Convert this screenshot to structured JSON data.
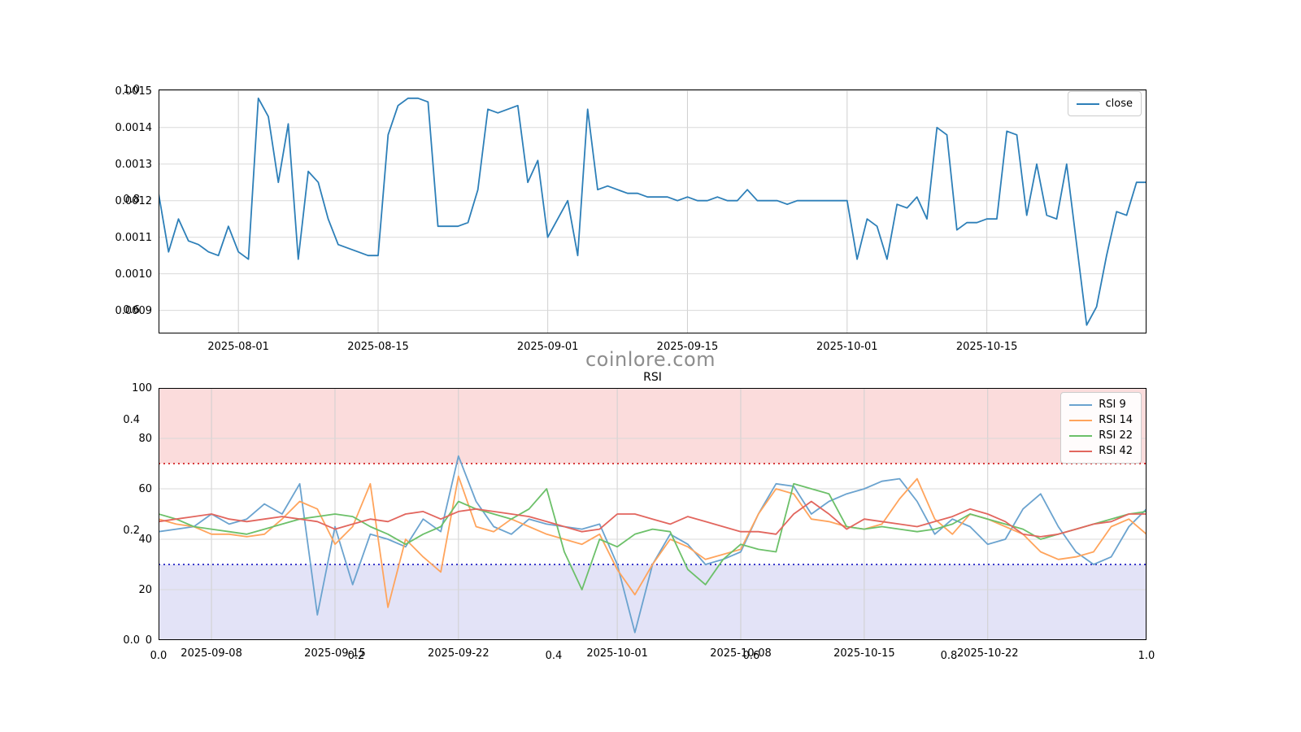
{
  "watermark": "coinlore.com",
  "rsi_title": "RSI",
  "overlay_axis_ticks": {
    "comment_visible_overlap_labels": "figure-fraction axis labels overlapping the data axis labels",
    "x_labels": [
      "0.0",
      "0.2",
      "0.4",
      "0.6",
      "0.8",
      "1.0"
    ],
    "y_labels": [
      "1.0",
      "0.8",
      "0.6",
      "0.4",
      "0.2",
      "0.0"
    ]
  },
  "chart_data": [
    {
      "type": "line",
      "name": "price-close",
      "title": "",
      "legend_position": "upper right",
      "x_range_estimate": [
        "2025-07-24",
        "2025-10-31"
      ],
      "n_points": 100,
      "x_tick_labels": [
        "2025-08-01",
        "2025-08-15",
        "2025-09-01",
        "2025-09-15",
        "2025-10-01",
        "2025-10-15"
      ],
      "x_tick_index": [
        8,
        22,
        39,
        53,
        69,
        83
      ],
      "y_tick_labels": [
        "0.0015",
        "0.0014",
        "0.0013",
        "0.0012",
        "0.0011",
        "0.0010",
        "0.0009"
      ],
      "y_tick_values": [
        0.0015,
        0.0014,
        0.0013,
        0.0012,
        0.0011,
        0.001,
        0.0009
      ],
      "ylim": [
        0.000837,
        0.001504
      ],
      "grid": true,
      "series": [
        {
          "name": "close",
          "color": "#2d7fb8",
          "values": [
            0.00122,
            0.00106,
            0.00115,
            0.00109,
            0.00108,
            0.00106,
            0.00105,
            0.00113,
            0.00106,
            0.00104,
            0.00148,
            0.00143,
            0.00125,
            0.00141,
            0.00104,
            0.00128,
            0.00125,
            0.00115,
            0.00108,
            0.00107,
            0.00106,
            0.00105,
            0.00105,
            0.00138,
            0.00146,
            0.00148,
            0.00148,
            0.00147,
            0.00113,
            0.00113,
            0.00113,
            0.00114,
            0.00123,
            0.00145,
            0.00144,
            0.00145,
            0.00146,
            0.00125,
            0.00131,
            0.0011,
            0.00115,
            0.0012,
            0.00105,
            0.00145,
            0.00123,
            0.00124,
            0.00123,
            0.00122,
            0.00122,
            0.00121,
            0.00121,
            0.00121,
            0.0012,
            0.00121,
            0.0012,
            0.0012,
            0.00121,
            0.0012,
            0.0012,
            0.00123,
            0.0012,
            0.0012,
            0.0012,
            0.00119,
            0.0012,
            0.0012,
            0.0012,
            0.0012,
            0.0012,
            0.0012,
            0.00104,
            0.00115,
            0.00113,
            0.00104,
            0.00119,
            0.00118,
            0.00121,
            0.00115,
            0.0014,
            0.00138,
            0.00112,
            0.00114,
            0.00114,
            0.00115,
            0.00115,
            0.00139,
            0.00138,
            0.00116,
            0.0013,
            0.00116,
            0.00115,
            0.0013,
            0.00108,
            0.00086,
            0.00091,
            0.00105,
            0.00117,
            0.00116,
            0.00125,
            0.00125
          ]
        }
      ]
    },
    {
      "type": "line",
      "name": "rsi",
      "title": "RSI",
      "legend_position": "upper right",
      "x_range_estimate": [
        "2025-09-05",
        "2025-10-31"
      ],
      "n_points": 57,
      "x_tick_labels": [
        "2025-09-08",
        "2025-09-15",
        "2025-09-22",
        "2025-10-01",
        "2025-10-08",
        "2025-10-15",
        "2025-10-22"
      ],
      "x_tick_index": [
        3,
        10,
        17,
        26,
        33,
        40,
        47
      ],
      "y_tick_labels": [
        "100",
        "80",
        "60",
        "40",
        "20",
        "0"
      ],
      "y_tick_values": [
        100,
        80,
        60,
        40,
        20,
        0
      ],
      "ylim": [
        0,
        100
      ],
      "grid": true,
      "overbought_level": 70,
      "oversold_level": 30,
      "overbought_fill": "#fbdcdc",
      "oversold_fill": "#e3e3f7",
      "overbought_line_color": "#cc0000",
      "oversold_line_color": "#0000bb",
      "series": [
        {
          "name": "RSI 9",
          "color": "#6ba3cf",
          "values": [
            43,
            44,
            45,
            50,
            46,
            48,
            54,
            50,
            62,
            10,
            45,
            22,
            42,
            40,
            37,
            48,
            43,
            73,
            55,
            45,
            42,
            48,
            46,
            45,
            44,
            46,
            30,
            3,
            30,
            42,
            38,
            30,
            32,
            35,
            50,
            62,
            61,
            50,
            55,
            58,
            60,
            63,
            64,
            55,
            42,
            48,
            45,
            38,
            40,
            52,
            58,
            45,
            35,
            30,
            33,
            45,
            52
          ]
        },
        {
          "name": "RSI 14",
          "color": "#ffa45c",
          "values": [
            48,
            46,
            45,
            42,
            42,
            41,
            42,
            48,
            55,
            52,
            38,
            45,
            62,
            13,
            40,
            33,
            27,
            65,
            45,
            43,
            48,
            45,
            42,
            40,
            38,
            42,
            28,
            18,
            30,
            40,
            37,
            32,
            34,
            36,
            50,
            60,
            58,
            48,
            47,
            45,
            44,
            46,
            56,
            64,
            48,
            42,
            50,
            48,
            45,
            42,
            35,
            32,
            33,
            35,
            45,
            48,
            42
          ]
        },
        {
          "name": "RSI 22",
          "color": "#6cc069",
          "values": [
            50,
            48,
            45,
            44,
            43,
            42,
            44,
            46,
            48,
            49,
            50,
            49,
            45,
            42,
            38,
            42,
            45,
            55,
            52,
            50,
            48,
            52,
            60,
            35,
            20,
            40,
            37,
            42,
            44,
            43,
            28,
            22,
            32,
            38,
            36,
            35,
            62,
            60,
            58,
            45,
            44,
            45,
            44,
            43,
            44,
            46,
            50,
            48,
            46,
            44,
            40,
            42,
            44,
            46,
            48,
            50,
            51
          ]
        },
        {
          "name": "RSI 42",
          "color": "#e2665e",
          "values": [
            47,
            48,
            49,
            50,
            48,
            47,
            48,
            49,
            48,
            47,
            44,
            46,
            48,
            47,
            50,
            51,
            48,
            51,
            52,
            51,
            50,
            49,
            47,
            45,
            43,
            44,
            50,
            50,
            48,
            46,
            49,
            47,
            45,
            43,
            43,
            42,
            50,
            55,
            50,
            44,
            48,
            47,
            46,
            45,
            47,
            49,
            52,
            50,
            47,
            42,
            41,
            42,
            44,
            46,
            47,
            50,
            50
          ]
        }
      ]
    }
  ]
}
